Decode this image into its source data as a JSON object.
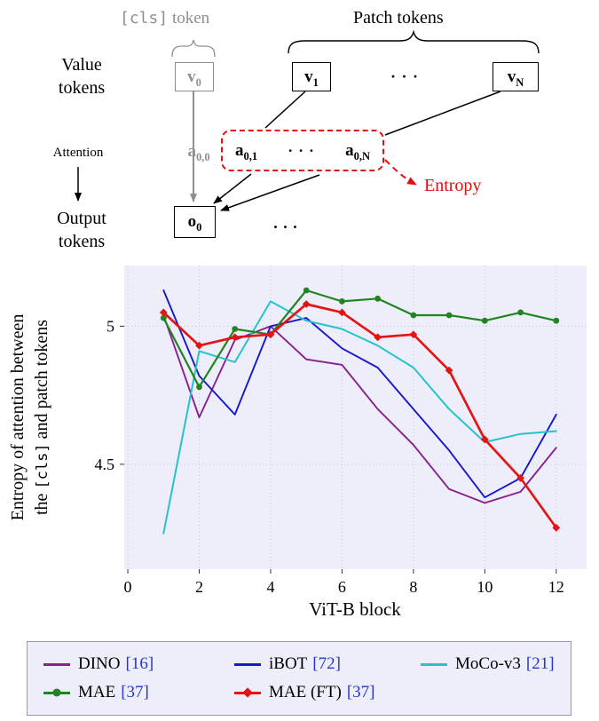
{
  "colors": {
    "entropy_red": "#dd1111",
    "muted_gray": "#8f8f8f",
    "citation_blue": "#2536c9",
    "plot_bg": "#edeefa",
    "grid": "#c3c8de",
    "legend_bg": "#edeefa",
    "legend_border": "#9a9a9a"
  },
  "diagram": {
    "cls_token": {
      "mono": "[cls]",
      "rest": " token"
    },
    "patch_tokens": "Patch tokens",
    "value_tokens": "Value tokens",
    "attention": "Attention",
    "output_tokens": "Output tokens",
    "entropy": "Entropy",
    "v0": {
      "base": "v",
      "sub": "0"
    },
    "v1": {
      "base": "v",
      "sub": "1"
    },
    "vN": {
      "base": "v",
      "sub": "N"
    },
    "a00": {
      "base": "a",
      "sub": "0,0"
    },
    "a01": {
      "base": "a",
      "sub": "0,1"
    },
    "a0N": {
      "base": "a",
      "sub": "0,N"
    },
    "o0": {
      "base": "o",
      "sub": "0"
    },
    "dots_v": "· · ·",
    "dots_a": "· · ·",
    "dots_o": ". . ."
  },
  "chart_data": {
    "type": "line",
    "xlabel": "ViT-B block",
    "ylabel": "Entropy of attention between the [cls] and patch tokens",
    "ylabel_line1": "Entropy of attention between",
    "ylabel_line2_pre": "the ",
    "ylabel_line2_cls": "[cls]",
    "ylabel_line2_post": " and patch tokens",
    "x": [
      1,
      2,
      3,
      4,
      5,
      6,
      7,
      8,
      9,
      10,
      11,
      12
    ],
    "xticks": [
      0,
      2,
      4,
      6,
      8,
      10,
      12
    ],
    "yticks": [
      4.5,
      5
    ],
    "xlim": [
      -0.1,
      12.85
    ],
    "ylim": [
      4.12,
      5.22
    ],
    "grid": true,
    "background": "#edeefa",
    "legend_position": "below",
    "series": [
      {
        "name": "DINO",
        "cite": "[16]",
        "color": "#8a1f8f",
        "marker": "none",
        "width": 1.9,
        "values": [
          5.04,
          4.67,
          4.95,
          5.0,
          4.88,
          4.86,
          4.7,
          4.57,
          4.41,
          4.36,
          4.4,
          4.56
        ]
      },
      {
        "name": "iBOT",
        "cite": "[72]",
        "color": "#1717cb",
        "marker": "none",
        "width": 1.9,
        "values": [
          5.13,
          4.82,
          4.68,
          5.0,
          5.03,
          4.92,
          4.85,
          4.7,
          4.55,
          4.38,
          4.45,
          4.68
        ]
      },
      {
        "name": "MoCo-v3",
        "cite": "[21]",
        "color": "#25c3cb",
        "marker": "none",
        "width": 2.0,
        "values": [
          4.25,
          4.91,
          4.87,
          5.09,
          5.02,
          4.99,
          4.93,
          4.85,
          4.7,
          4.58,
          4.61,
          4.62
        ]
      },
      {
        "name": "MAE",
        "cite": "[37]",
        "color": "#208420",
        "marker": "circle",
        "width": 2.2,
        "values": [
          5.03,
          4.78,
          4.99,
          4.97,
          5.13,
          5.09,
          5.1,
          5.04,
          5.04,
          5.02,
          5.05,
          5.02
        ]
      },
      {
        "name": "MAE (FT)",
        "cite": "[37]",
        "color": "#e41414",
        "marker": "diamond",
        "width": 2.7,
        "values": [
          5.05,
          4.93,
          4.96,
          4.97,
          5.08,
          5.05,
          4.96,
          4.97,
          4.84,
          4.59,
          4.45,
          4.27
        ]
      }
    ]
  }
}
